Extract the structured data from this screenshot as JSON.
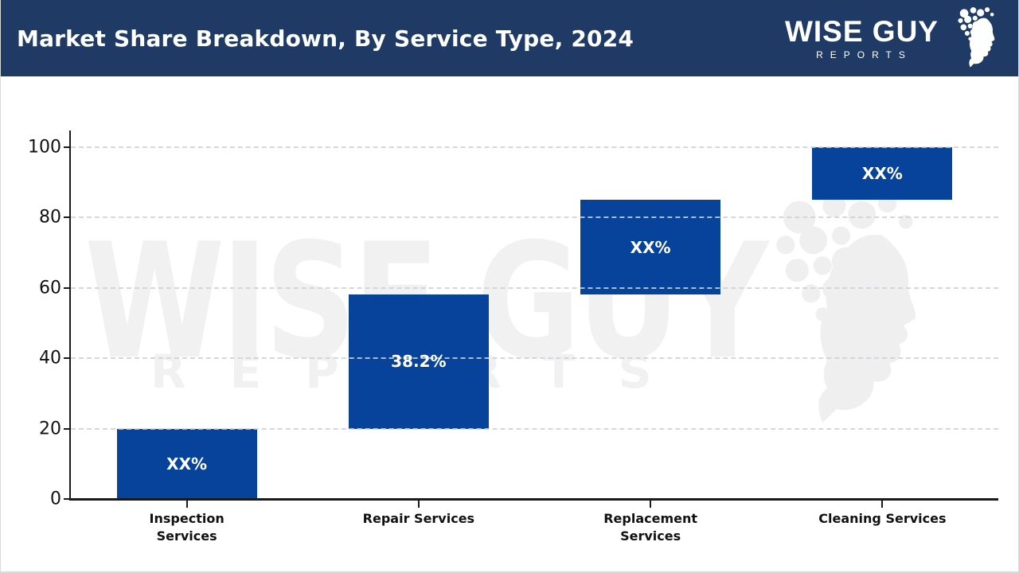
{
  "header": {
    "title": "Market Share Breakdown, By Service Type, 2024",
    "logo": {
      "wordmark": "WISE GUY",
      "subtext": "REPORTS"
    }
  },
  "watermark": {
    "wordmark": "WISE GUY",
    "subtext": "REPORTS"
  },
  "colors": {
    "header_bg": "#1f3a64",
    "bar_fill": "#07439a",
    "bar_label": "#ffffff",
    "grid_line": "#ccd2d9",
    "axis_line": "#1a1a1a",
    "tick_label": "#111111",
    "watermark": "#f1f1f1",
    "page_border": "#d9d9d9"
  },
  "chart_data": {
    "type": "bar",
    "variant": "waterfall-floating-segments",
    "title": "Market Share Breakdown, By Service Type, 2024",
    "xlabel": "",
    "ylabel": "",
    "ylim": [
      0,
      100
    ],
    "yticks": [
      0,
      20,
      40,
      60,
      80,
      100
    ],
    "grid": "horizontal-dashed",
    "legend": "none",
    "categories": [
      "Inspection\nServices",
      "Repair Services",
      "Replacement\nServices",
      "Cleaning Services"
    ],
    "values": [
      20,
      38.2,
      26.8,
      15
    ],
    "bars": [
      {
        "category": "Inspection Services",
        "start": 0,
        "end": 20,
        "label": "XX%"
      },
      {
        "category": "Repair Services",
        "start": 20,
        "end": 58.2,
        "label": "38.2%"
      },
      {
        "category": "Replacement Services",
        "start": 58.2,
        "end": 85,
        "label": "XX%"
      },
      {
        "category": "Cleaning Services",
        "start": 85,
        "end": 100,
        "label": "XX%"
      }
    ]
  }
}
